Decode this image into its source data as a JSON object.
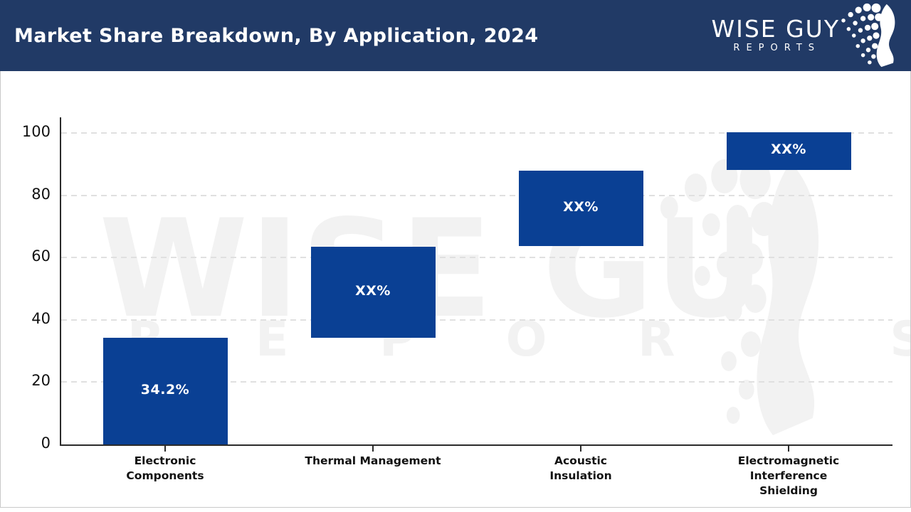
{
  "header": {
    "title": "Market Share Breakdown, By Application, 2024",
    "logo": {
      "brand_top": "WISE GUY",
      "brand_bottom": "REPORTS"
    }
  },
  "watermark": {
    "big_text": "WISE GU",
    "sub_text": "R E P O R T S"
  },
  "colors": {
    "header_bg": "#213a66",
    "bar_fill": "#0a4094",
    "axis": "#2b2b2b",
    "grid": "#e0e0e0",
    "label": "#111111",
    "value_label": "#ffffff",
    "border": "#c9c9c9",
    "watermark": "#f2f2f2"
  },
  "chart_data": {
    "type": "bar",
    "subtype": "waterfall",
    "title": "Market Share Breakdown, By Application, 2024",
    "xlabel": "",
    "ylabel": "",
    "ylim": [
      0,
      105
    ],
    "yticks": [
      0,
      20,
      40,
      60,
      80,
      100
    ],
    "grid": "horizontal-dashed",
    "legend": "none",
    "categories": [
      "Electronic Components",
      "Thermal Management",
      "Acoustic Insulation",
      "Electromagnetic Interference Shielding"
    ],
    "category_lines": [
      [
        "Electronic",
        "Components"
      ],
      [
        "Thermal Management"
      ],
      [
        "Acoustic",
        "Insulation"
      ],
      [
        "Electromagnetic",
        "Interference",
        "Shielding"
      ]
    ],
    "segments": [
      {
        "category": "Electronic Components",
        "start": 0,
        "end": 34.2,
        "label": "34.2%"
      },
      {
        "category": "Thermal Management",
        "start": 34.2,
        "end": 63.5,
        "label": "XX%"
      },
      {
        "category": "Acoustic Insulation",
        "start": 63.7,
        "end": 87.9,
        "label": "XX%"
      },
      {
        "category": "Electromagnetic Interference Shielding",
        "start": 88.2,
        "end": 100.2,
        "label": "XX%"
      }
    ]
  }
}
